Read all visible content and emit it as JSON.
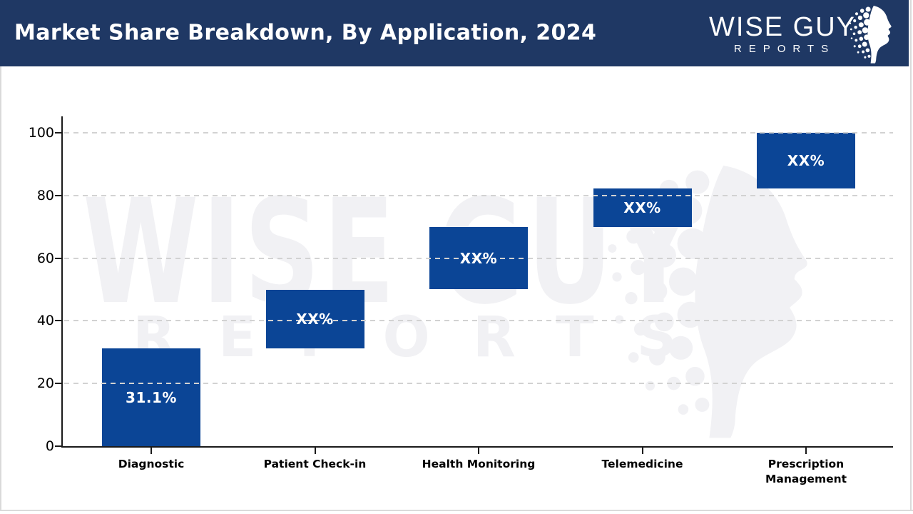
{
  "header": {
    "title": "Market Share Breakdown, By Application, 2024",
    "bg_color": "#1f3864",
    "logo": {
      "line1": "WISE GUY",
      "line2": "REPORTS"
    }
  },
  "watermark": {
    "line1": "WISE GUY",
    "line2": "REPORTS"
  },
  "chart_data": {
    "type": "bar",
    "subtype": "waterfall",
    "title": "Market Share Breakdown, By Application, 2024",
    "categories": [
      "Diagnostic",
      "Patient Check-in",
      "Health Monitoring",
      "Telemedicine",
      "Prescription Management"
    ],
    "segments": [
      {
        "category": "Diagnostic",
        "start": 0,
        "end": 31.1,
        "label": "31.1%"
      },
      {
        "category": "Patient Check-in",
        "start": 31.1,
        "end": 50,
        "label": "XX%"
      },
      {
        "category": "Health Monitoring",
        "start": 50,
        "end": 70,
        "label": "XX%"
      },
      {
        "category": "Telemedicine",
        "start": 70,
        "end": 82.3,
        "label": "XX%"
      },
      {
        "category": "Prescription Management",
        "start": 82.3,
        "end": 100,
        "label": "XX%"
      }
    ],
    "y_ticks": [
      0,
      20,
      40,
      60,
      80,
      100
    ],
    "ylim": [
      0,
      100
    ],
    "xlabel": "",
    "ylabel": "",
    "bar_color": "#0b4596",
    "grid": "horizontal dashed, drawn above bars",
    "legend": "none"
  }
}
